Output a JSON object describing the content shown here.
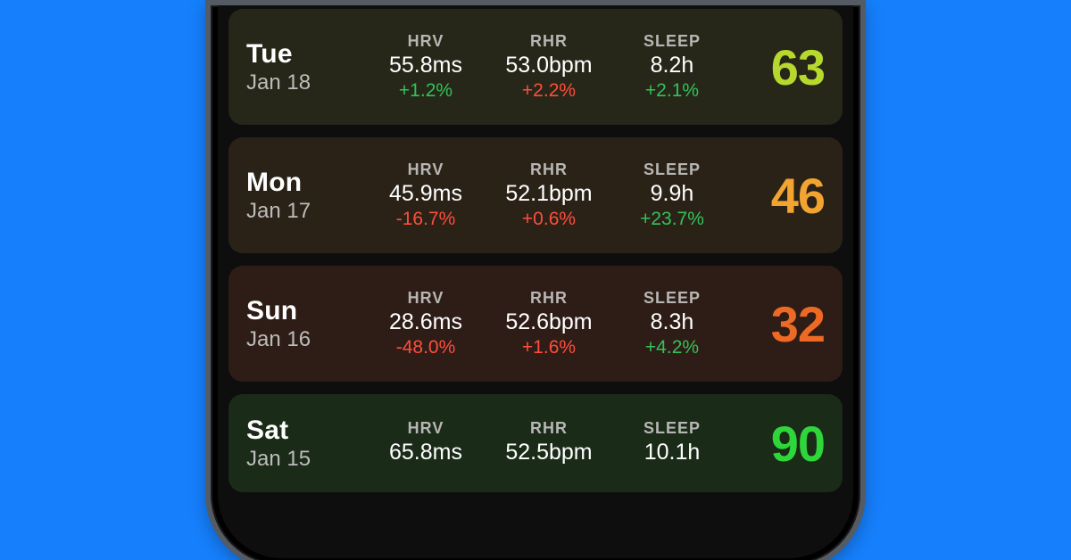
{
  "background_color": "#167ffc",
  "phone": {
    "bezel_color": "#555b63",
    "inner_bg": "#0e0e0e"
  },
  "colors": {
    "delta_up": "#33c15a",
    "delta_down": "#ff4d3d",
    "label": "#b7b6b4"
  },
  "rows": [
    {
      "day": "Tue",
      "date": "Jan 18",
      "bg": "#262718",
      "score": "63",
      "score_color": "#b7d92e",
      "metrics": [
        {
          "label": "HRV",
          "value": "55.8ms",
          "delta": "+1.2%",
          "delta_dir": "up"
        },
        {
          "label": "RHR",
          "value": "53.0bpm",
          "delta": "+2.2%",
          "delta_dir": "down"
        },
        {
          "label": "SLEEP",
          "value": "8.2h",
          "delta": "+2.1%",
          "delta_dir": "up"
        }
      ]
    },
    {
      "day": "Mon",
      "date": "Jan 17",
      "bg": "#2b2217",
      "score": "46",
      "score_color": "#f2a431",
      "metrics": [
        {
          "label": "HRV",
          "value": "45.9ms",
          "delta": "-16.7%",
          "delta_dir": "down"
        },
        {
          "label": "RHR",
          "value": "52.1bpm",
          "delta": "+0.6%",
          "delta_dir": "down"
        },
        {
          "label": "SLEEP",
          "value": "9.9h",
          "delta": "+23.7%",
          "delta_dir": "up"
        }
      ]
    },
    {
      "day": "Sun",
      "date": "Jan 16",
      "bg": "#2e1d16",
      "score": "32",
      "score_color": "#ee6a24",
      "metrics": [
        {
          "label": "HRV",
          "value": "28.6ms",
          "delta": "-48.0%",
          "delta_dir": "down"
        },
        {
          "label": "RHR",
          "value": "52.6bpm",
          "delta": "+1.6%",
          "delta_dir": "down"
        },
        {
          "label": "SLEEP",
          "value": "8.3h",
          "delta": "+4.2%",
          "delta_dir": "up"
        }
      ]
    },
    {
      "day": "Sat",
      "date": "Jan 15",
      "bg": "#1a2b18",
      "score": "90",
      "score_color": "#2fd63a",
      "last": true,
      "metrics": [
        {
          "label": "HRV",
          "value": "65.8ms",
          "delta": "",
          "delta_dir": "up"
        },
        {
          "label": "RHR",
          "value": "52.5bpm",
          "delta": "",
          "delta_dir": "down"
        },
        {
          "label": "SLEEP",
          "value": "10.1h",
          "delta": "",
          "delta_dir": "up"
        }
      ]
    }
  ]
}
